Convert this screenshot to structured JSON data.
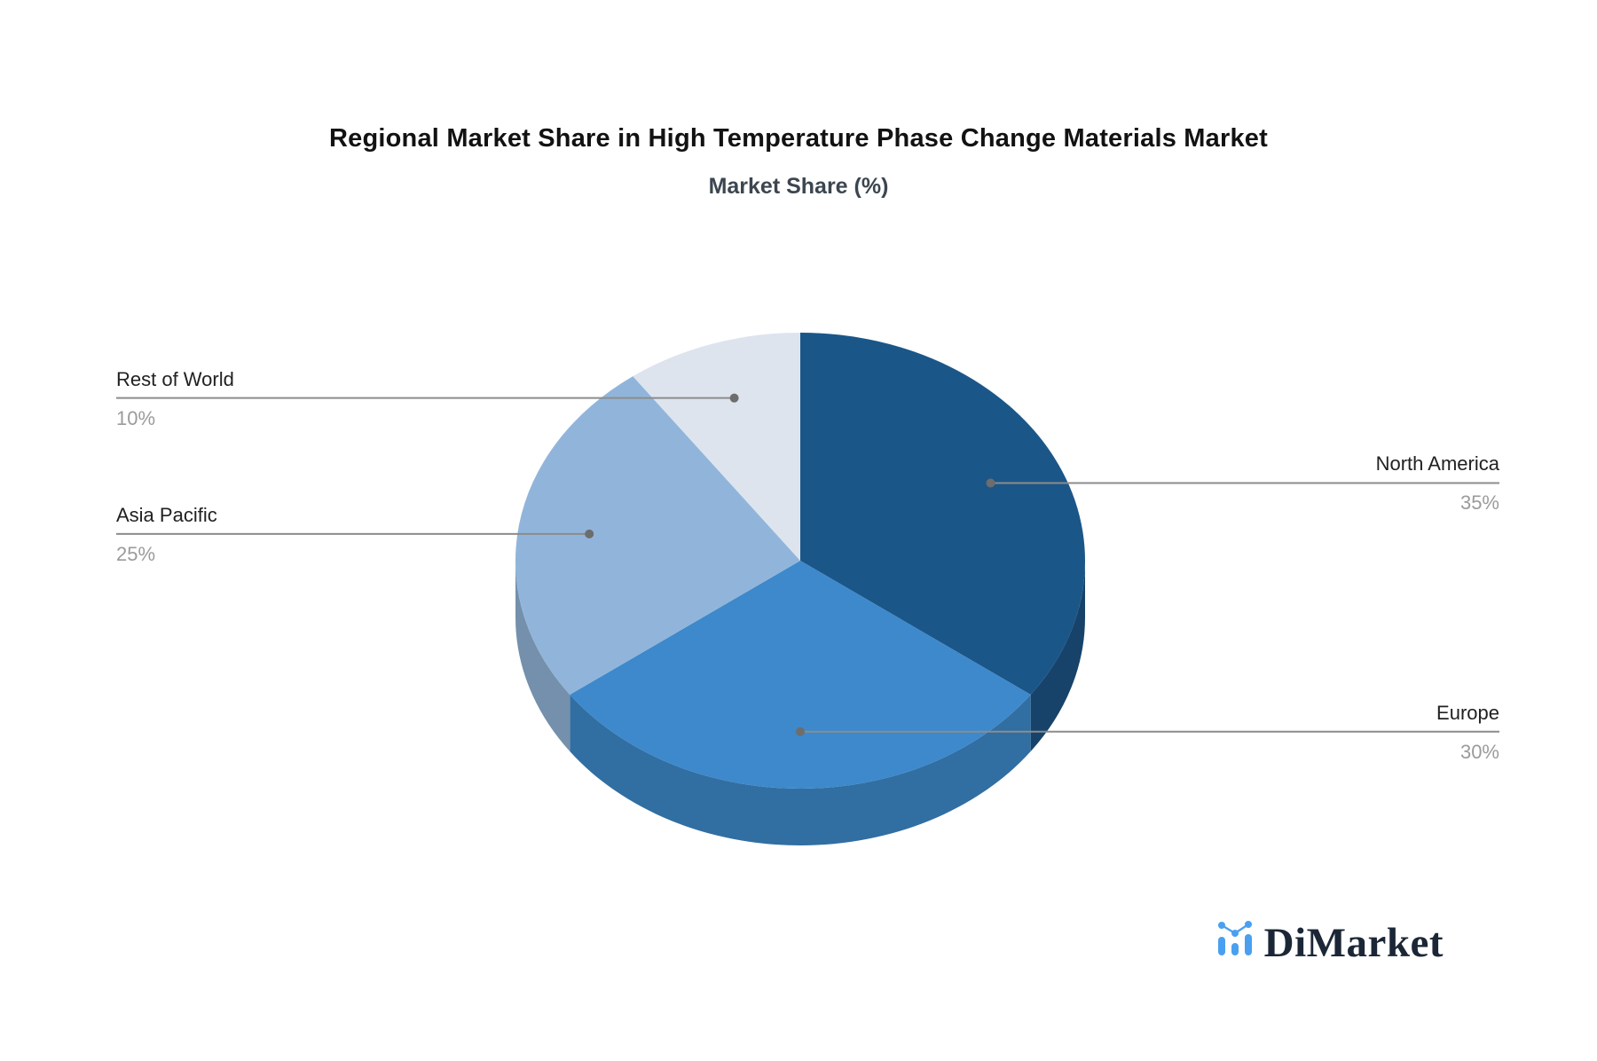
{
  "chart_data": {
    "type": "pie",
    "effect": "3d",
    "title": "Regional Market Share in High Temperature Phase Change Materials Market",
    "subtitle": "Market Share (%)",
    "unit": "%",
    "start_angle": "top, clockwise",
    "legend_position": "none (inline connector labels)",
    "connector_color": "#8c8c8c",
    "connector_dot_color": "#6d6d6d",
    "label_name_color": "#212121",
    "label_value_color": "#9b9b9b",
    "slices": [
      {
        "label": "North America",
        "value": 35,
        "display": "35%",
        "color": "#1b5689",
        "side_color": "#17436a",
        "label_side": "right"
      },
      {
        "label": "Europe",
        "value": 30,
        "display": "30%",
        "color": "#3d89cb",
        "side_color": "#316ea2",
        "label_side": "right"
      },
      {
        "label": "Asia Pacific",
        "value": 25,
        "display": "25%",
        "color": "#91b5da",
        "side_color": "#7490ac",
        "label_side": "left"
      },
      {
        "label": "Rest of World",
        "value": 10,
        "display": "10%",
        "color": "#dde4ee",
        "side_color": "#b9c5d6",
        "label_side": "left"
      }
    ]
  },
  "branding": {
    "logo_text": "DiMarket",
    "logo_text_color": "#1b2736",
    "logo_icon": "bar-chart-logo-icon",
    "logo_icon_color": "#4aa0f0"
  }
}
